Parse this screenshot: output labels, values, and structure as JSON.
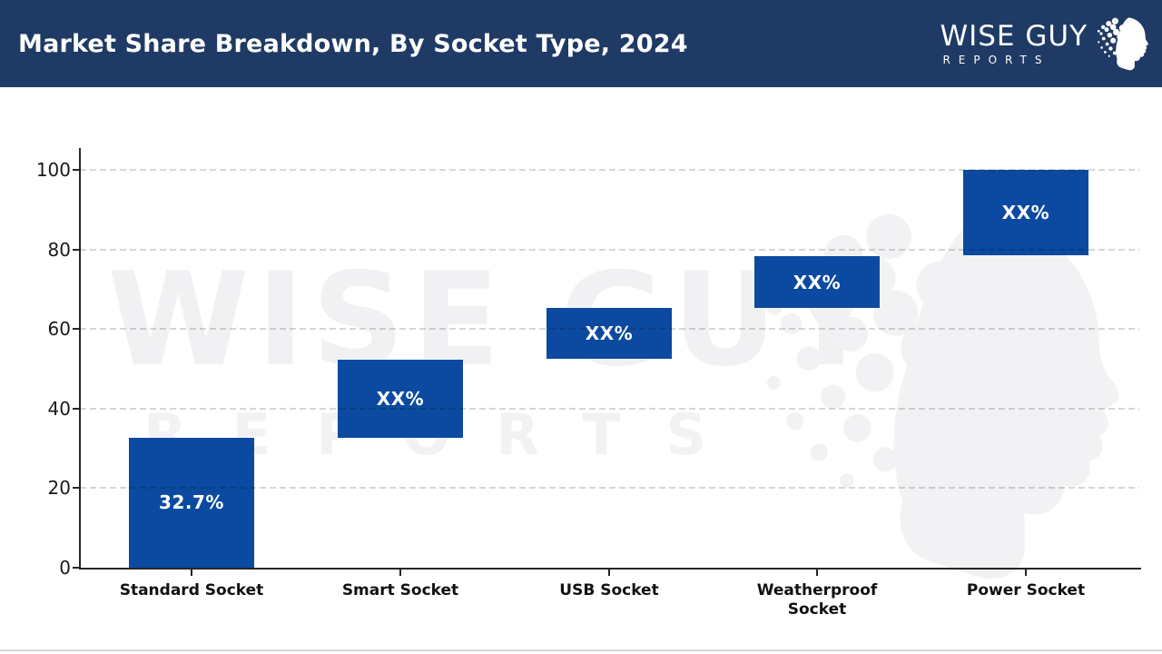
{
  "header": {
    "title": "Market Share Breakdown, By Socket Type, 2024",
    "logo": {
      "line1": "WISE GUY",
      "line2": "REPORTS"
    }
  },
  "watermark": {
    "line1": "WISE GUY",
    "line2": "REPORTS"
  },
  "chart_data": {
    "type": "bar",
    "subtype": "waterfall",
    "title": "Market Share Breakdown, By Socket Type, 2024",
    "categories": [
      "Standard Socket",
      "Smart Socket",
      "USB Socket",
      "Weatherproof Socket",
      "Power Socket"
    ],
    "segments": [
      {
        "category": "Standard Socket",
        "base": 0,
        "top": 32.7,
        "label": "32.7%"
      },
      {
        "category": "Smart Socket",
        "base": 32.7,
        "top": 52.3,
        "label": "XX%"
      },
      {
        "category": "USB Socket",
        "base": 52.6,
        "top": 65.3,
        "label": "XX%"
      },
      {
        "category": "Weatherproof Socket",
        "base": 65.3,
        "top": 78.3,
        "label": "XX%"
      },
      {
        "category": "Power Socket",
        "base": 78.5,
        "top": 100,
        "label": "XX%"
      }
    ],
    "ylim": [
      0,
      100
    ],
    "yticks": [
      0,
      20,
      40,
      60,
      80,
      100
    ],
    "xlabel": "",
    "ylabel": "",
    "legend": "none",
    "grid": "horizontal-dashed",
    "grid_above_bars": true,
    "bar_color": "#0b4aa0",
    "bar_label_color": "#ffffff"
  },
  "colors": {
    "header_bg": "#1f3a64",
    "bar": "#0b4aa0",
    "axis": "#262626",
    "grid": "#d9d9d9",
    "watermark": "#f2f2f4",
    "footer_line": "#d9d9d9"
  }
}
